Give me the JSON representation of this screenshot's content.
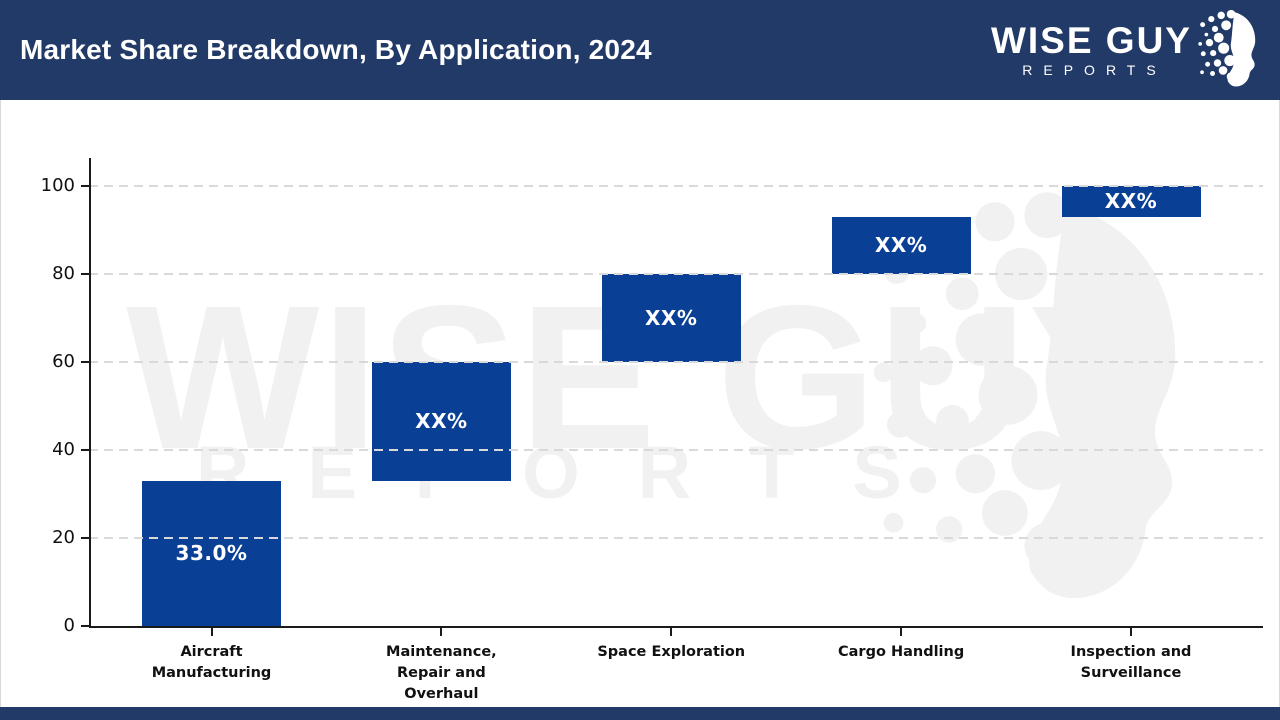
{
  "header": {
    "title": "Market Share Breakdown, By Application, 2024",
    "logo": {
      "wordmark": "WISE GUY",
      "subtitle": "REPORTS"
    }
  },
  "watermark": {
    "line1": "WISE GUY",
    "line2": "REPORTS"
  },
  "chart_data": {
    "type": "bar",
    "subtype": "waterfall-market-share",
    "title": "Market Share Breakdown, By Application, 2024",
    "categories": [
      "Aircraft\nManufacturing",
      "Maintenance,\nRepair and\nOverhaul",
      "Space Exploration",
      "Cargo Handling",
      "Inspection and\nSurveillance"
    ],
    "segments": [
      {
        "from": 0,
        "to": 33
      },
      {
        "from": 33,
        "to": 60
      },
      {
        "from": 60,
        "to": 80
      },
      {
        "from": 80,
        "to": 93
      },
      {
        "from": 93,
        "to": 100
      }
    ],
    "bar_labels": [
      "33.0%",
      "XX%",
      "XX%",
      "XX%",
      "XX%"
    ],
    "ylim": [
      0,
      105
    ],
    "yticks": [
      0,
      20,
      40,
      60,
      80,
      100
    ],
    "grid": "horizontal-dashed",
    "legend": "none",
    "colors": {
      "bar": "#0a3f96",
      "grid": "#d9d9d9",
      "axis": "#1a1a1a",
      "header": "#223a67",
      "bar_label_text": "#ffffff",
      "watermark": "#f1f1f1"
    }
  }
}
